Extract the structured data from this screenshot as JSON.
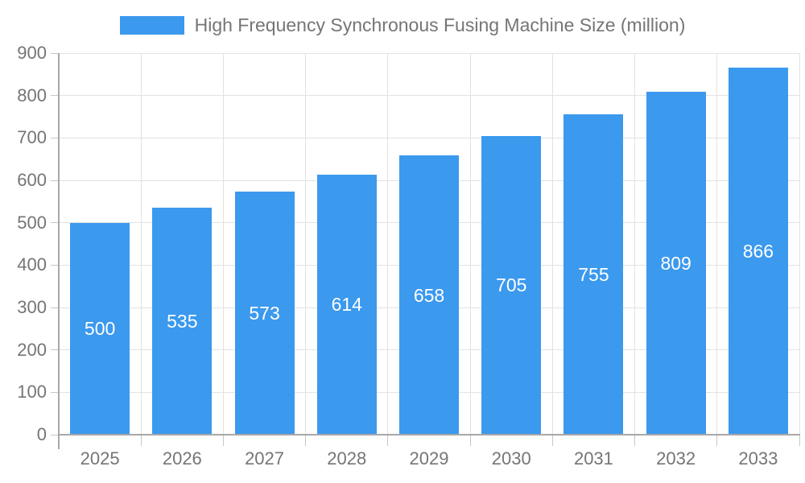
{
  "legend": {
    "position": "top",
    "items": [
      {
        "label": "High Frequency Synchronous Fusing Machine Size (million)",
        "color": "#3B99EE"
      }
    ]
  },
  "chart_data": {
    "type": "bar",
    "title": "High Frequency Synchronous Fusing Machine Size (million)",
    "categories": [
      "2025",
      "2026",
      "2027",
      "2028",
      "2029",
      "2030",
      "2031",
      "2032",
      "2033"
    ],
    "series": [
      {
        "name": "High Frequency Synchronous Fusing Machine Size (million)",
        "values": [
          500,
          535,
          573,
          614,
          658,
          705,
          755,
          809,
          866
        ],
        "color": "#3B99EE"
      }
    ],
    "xlabel": "",
    "ylabel": "",
    "ylim": [
      0,
      900
    ],
    "ytick_interval": 100,
    "yticks": [
      0,
      100,
      200,
      300,
      400,
      500,
      600,
      700,
      800,
      900
    ],
    "grid": true,
    "legend_position": "top",
    "value_labels_position": "inside-middle",
    "value_label_color": "#FFFFFF"
  },
  "colors": {
    "bar": "#3B99EE",
    "gridline": "#E2E2E2",
    "axis": "#A8A8A8",
    "tick": "#C6C6C6",
    "text": "#757575",
    "value_label": "#FFFFFF",
    "background": "#FFFFFF"
  }
}
